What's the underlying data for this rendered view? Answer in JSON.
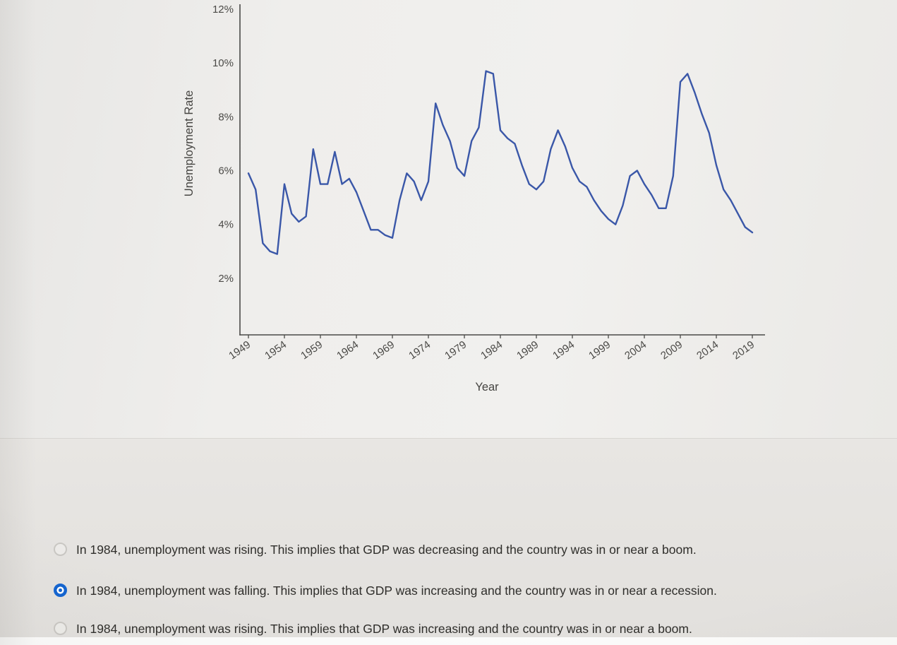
{
  "chart_data": {
    "type": "line",
    "title": "",
    "xlabel": "Year",
    "ylabel": "Unemployment Rate",
    "x_tick_labels": [
      "1949",
      "1954",
      "1959",
      "1964",
      "1969",
      "1974",
      "1979",
      "1984",
      "1989",
      "1994",
      "1999",
      "2004",
      "2009",
      "2014",
      "2019"
    ],
    "y_tick_labels": [
      "2%",
      "4%",
      "6%",
      "8%",
      "10%",
      "12%"
    ],
    "xlim": [
      1948,
      2021
    ],
    "ylim": [
      0,
      12.3
    ],
    "grid": false,
    "legend": "none",
    "line_color": "#3a57a8",
    "axis_color": "#4a4a48",
    "series": [
      {
        "name": "Unemployment Rate",
        "x": [
          1949,
          1950,
          1951,
          1952,
          1953,
          1954,
          1955,
          1956,
          1957,
          1958,
          1959,
          1960,
          1961,
          1962,
          1963,
          1964,
          1965,
          1966,
          1967,
          1968,
          1969,
          1970,
          1971,
          1972,
          1973,
          1974,
          1975,
          1976,
          1977,
          1978,
          1979,
          1980,
          1981,
          1982,
          1983,
          1984,
          1985,
          1986,
          1987,
          1988,
          1989,
          1990,
          1991,
          1992,
          1993,
          1994,
          1995,
          1996,
          1997,
          1998,
          1999,
          2000,
          2001,
          2002,
          2003,
          2004,
          2005,
          2006,
          2007,
          2008,
          2009,
          2010,
          2011,
          2012,
          2013,
          2014,
          2015,
          2016,
          2017,
          2018,
          2019
        ],
        "values": [
          5.9,
          5.3,
          3.3,
          3.0,
          2.9,
          5.5,
          4.4,
          4.1,
          4.3,
          6.8,
          5.5,
          5.5,
          6.7,
          5.5,
          5.7,
          5.2,
          4.5,
          3.8,
          3.8,
          3.6,
          3.5,
          4.9,
          5.9,
          5.6,
          4.9,
          5.6,
          8.5,
          7.7,
          7.1,
          6.1,
          5.8,
          7.1,
          7.6,
          9.7,
          9.6,
          7.5,
          7.2,
          7.0,
          6.2,
          5.5,
          5.3,
          5.6,
          6.8,
          7.5,
          6.9,
          6.1,
          5.6,
          5.4,
          4.9,
          4.5,
          4.2,
          4.0,
          4.7,
          5.8,
          6.0,
          5.5,
          5.1,
          4.6,
          4.6,
          5.8,
          9.3,
          9.6,
          8.9,
          8.1,
          7.4,
          6.2,
          5.3,
          4.9,
          4.4,
          3.9,
          3.7
        ]
      }
    ]
  },
  "quiz": {
    "radio_selected_color": "#1565d0",
    "selected_index": 1,
    "options": [
      {
        "text": "In 1984, unemployment was rising. This implies that GDP was decreasing and the country was in or near a boom.",
        "selected": false
      },
      {
        "text": "In 1984, unemployment was falling. This implies that GDP was increasing and the country was in or near a recession.",
        "selected": true
      },
      {
        "text": "In 1984, unemployment was rising. This implies that GDP was increasing and the country was in or near a boom.",
        "selected": false
      }
    ]
  }
}
